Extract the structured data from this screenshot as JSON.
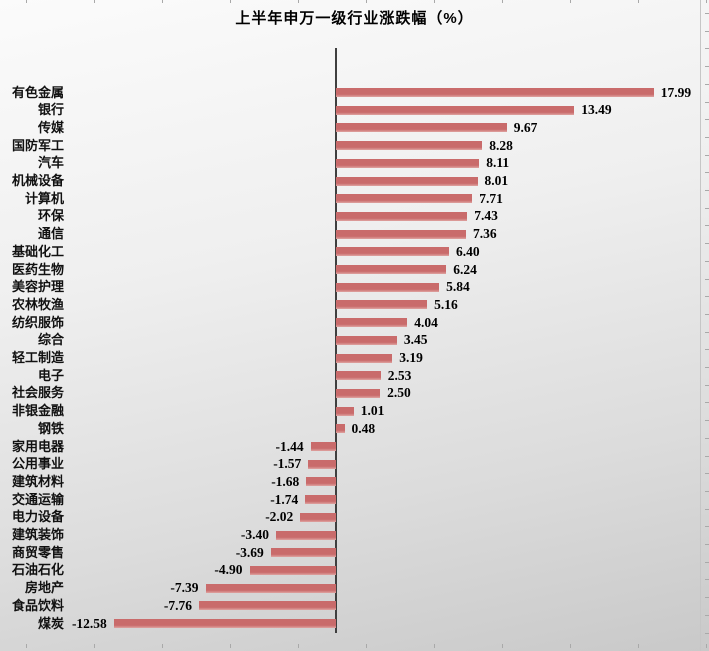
{
  "chart_data": {
    "type": "bar",
    "orientation": "horizontal",
    "title": "上半年申万一级行业涨跌幅（%）",
    "categories": [
      "有色金属",
      "银行",
      "传媒",
      "国防军工",
      "汽车",
      "机械设备",
      "计算机",
      "环保",
      "通信",
      "基础化工",
      "医药生物",
      "美容护理",
      "农林牧渔",
      "纺织服饰",
      "综合",
      "轻工制造",
      "电子",
      "社会服务",
      "非银金融",
      "钢铁",
      "家用电器",
      "公用事业",
      "建筑材料",
      "交通运输",
      "电力设备",
      "建筑装饰",
      "商贸零售",
      "石油石化",
      "房地产",
      "食品饮料",
      "煤炭"
    ],
    "values": [
      17.99,
      13.49,
      9.67,
      8.28,
      8.11,
      8.01,
      7.71,
      7.43,
      7.36,
      6.4,
      6.24,
      5.84,
      5.16,
      4.04,
      3.45,
      3.19,
      2.53,
      2.5,
      1.01,
      0.48,
      -1.44,
      -1.57,
      -1.68,
      -1.74,
      -2.02,
      -3.4,
      -3.69,
      -4.9,
      -7.39,
      -7.76,
      -12.58
    ],
    "value_label_format": "0.00",
    "xlim": [
      -14,
      21
    ],
    "grid": false,
    "legend": false,
    "bar_color": "#c96b6b",
    "bar_bottom_edge_color": "#dfa3a1",
    "axis_line_color": "#3f3f3f",
    "text_color": "#000000"
  }
}
